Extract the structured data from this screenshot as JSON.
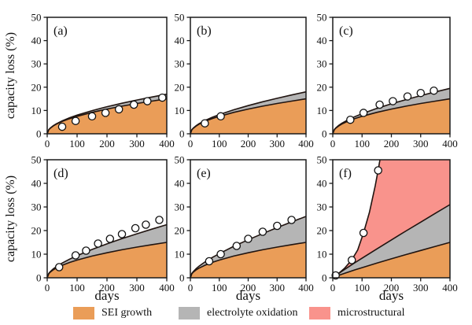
{
  "chart_data": {
    "type": "area",
    "description": "Six-panel stacked-area model fits of battery capacity loss versus time with experimental data points",
    "axes": {
      "xlabel": "days",
      "ylabel": "capacity loss (%)",
      "xlim": [
        0,
        400
      ],
      "ylim": [
        0,
        50
      ],
      "xticks": [
        0,
        100,
        200,
        300,
        400
      ],
      "yticks": [
        0,
        10,
        20,
        30,
        40,
        50
      ],
      "grid": false
    },
    "colors": {
      "sei": "#EA9D58",
      "oxidation": "#B5B5B5",
      "microstructural": "#F9938C",
      "line": "#201410",
      "marker_fill": "#ffffff",
      "marker_edge": "#111111"
    },
    "legend": [
      {
        "label": "SEI growth",
        "color": "#EA9D58"
      },
      {
        "label": "electrolyte oxidation",
        "color": "#B5B5B5"
      },
      {
        "label": "microstructural",
        "color": "#F9938C"
      }
    ],
    "panels": [
      {
        "id": "a",
        "label": "(a)",
        "boundaries": {
          "x": [
            0,
            5,
            10,
            20,
            30,
            50,
            75,
            100,
            150,
            200,
            250,
            300,
            350,
            400
          ],
          "sei_top": [
            0,
            1.68,
            2.37,
            3.35,
            4.11,
            5.3,
            6.5,
            7.5,
            9.19,
            10.61,
            11.86,
            12.99,
            14.03,
            15
          ],
          "oxidation_top": [
            0,
            1.71,
            2.42,
            3.45,
            4.26,
            5.55,
            6.88,
            8,
            9.94,
            11.61,
            13.11,
            14.49,
            15.78,
            17
          ]
        },
        "points": {
          "days": [
            50,
            95,
            150,
            195,
            240,
            290,
            335,
            385
          ],
          "loss": [
            3,
            5.5,
            7.5,
            9,
            10.5,
            12.5,
            14,
            15.5
          ]
        }
      },
      {
        "id": "b",
        "label": "(b)",
        "boundaries": {
          "x": [
            0,
            5,
            10,
            20,
            30,
            50,
            75,
            100,
            150,
            200,
            250,
            300,
            350,
            400
          ],
          "sei_top": [
            0,
            1.68,
            2.37,
            3.35,
            4.11,
            5.3,
            6.5,
            7.5,
            9.19,
            10.61,
            11.86,
            12.99,
            14.03,
            15
          ],
          "oxidation_top": [
            0,
            1.72,
            2.45,
            3.5,
            4.34,
            5.68,
            7.06,
            8.25,
            10.32,
            12.11,
            13.74,
            15.24,
            16.66,
            18
          ]
        },
        "points": {
          "days": [
            50,
            105
          ],
          "loss": [
            4.5,
            7.5
          ]
        }
      },
      {
        "id": "c",
        "label": "(c)",
        "boundaries": {
          "x": [
            0,
            5,
            10,
            20,
            30,
            50,
            75,
            100,
            150,
            200,
            250,
            300,
            350,
            400
          ],
          "sei_top": [
            0,
            1.68,
            2.37,
            3.35,
            4.11,
            5.3,
            6.5,
            7.5,
            9.19,
            10.61,
            11.86,
            12.99,
            14.03,
            15
          ],
          "oxidation_top": [
            0,
            1.74,
            2.48,
            3.58,
            4.45,
            5.86,
            7.34,
            8.63,
            10.88,
            12.86,
            14.67,
            16.37,
            17.97,
            19.5
          ]
        },
        "points": {
          "days": [
            60,
            105,
            160,
            205,
            255,
            300,
            345
          ],
          "loss": [
            6,
            9,
            12.5,
            14,
            16,
            17.5,
            18.5
          ]
        }
      },
      {
        "id": "d",
        "label": "(d)",
        "boundaries": {
          "x": [
            0,
            5,
            10,
            20,
            30,
            50,
            75,
            100,
            150,
            200,
            250,
            300,
            350,
            400
          ],
          "sei_top": [
            0,
            1.68,
            2.37,
            3.35,
            4.11,
            5.3,
            6.5,
            7.5,
            9.19,
            10.61,
            11.86,
            12.99,
            14.03,
            15
          ],
          "oxidation_top": [
            0,
            1.77,
            2.56,
            3.73,
            4.67,
            6.24,
            7.91,
            9.38,
            12,
            14.36,
            16.55,
            18.62,
            20.59,
            22.5
          ]
        },
        "points": {
          "days": [
            40,
            95,
            130,
            170,
            210,
            250,
            295,
            330,
            375
          ],
          "loss": [
            4.5,
            9.5,
            11.5,
            14.5,
            16.5,
            18.5,
            21,
            22.5,
            24.5
          ]
        }
      },
      {
        "id": "e",
        "label": "(e)",
        "boundaries": {
          "x": [
            0,
            5,
            10,
            20,
            30,
            50,
            75,
            100,
            150,
            200,
            250,
            300,
            350,
            400
          ],
          "sei_top": [
            0,
            1.68,
            2.37,
            3.35,
            4.11,
            5.3,
            6.5,
            7.5,
            9.19,
            10.61,
            11.86,
            12.99,
            14.03,
            15
          ],
          "oxidation_top": [
            0,
            1.82,
            2.65,
            3.9,
            4.94,
            6.68,
            8.56,
            10.25,
            13.32,
            16.11,
            18.74,
            21.24,
            23.66,
            26
          ]
        },
        "points": {
          "days": [
            65,
            105,
            160,
            200,
            250,
            300,
            350
          ],
          "loss": [
            7,
            10,
            13.5,
            16.5,
            19.5,
            22,
            24.5
          ]
        }
      },
      {
        "id": "f",
        "label": "(f)",
        "boundaries": {
          "x": [
            0,
            5,
            10,
            20,
            30,
            50,
            75,
            100,
            150,
            200,
            250,
            300,
            350,
            400
          ],
          "sei_top": [
            0,
            0.29,
            0.54,
            1.01,
            1.46,
            2.31,
            3.32,
            4.31,
            6.21,
            8.04,
            9.83,
            11.58,
            13.3,
            15
          ],
          "oxidation_top": [
            0,
            0.49,
            0.94,
            1.81,
            2.66,
            4.31,
            6.32,
            8.31,
            12.21,
            16.04,
            19.83,
            23.58,
            27.3,
            31
          ]
        },
        "micro_curve": {
          "x": [
            0,
            20,
            40,
            65,
            85,
            105,
            125,
            145,
            155,
            161
          ],
          "y": [
            0,
            1.9,
            4,
            7.6,
            11.8,
            19,
            27.7,
            39,
            45.6,
            50
          ]
        },
        "points": {
          "days": [
            10,
            65,
            105,
            155
          ],
          "loss": [
            1,
            7.5,
            19,
            45.5
          ]
        }
      }
    ]
  }
}
